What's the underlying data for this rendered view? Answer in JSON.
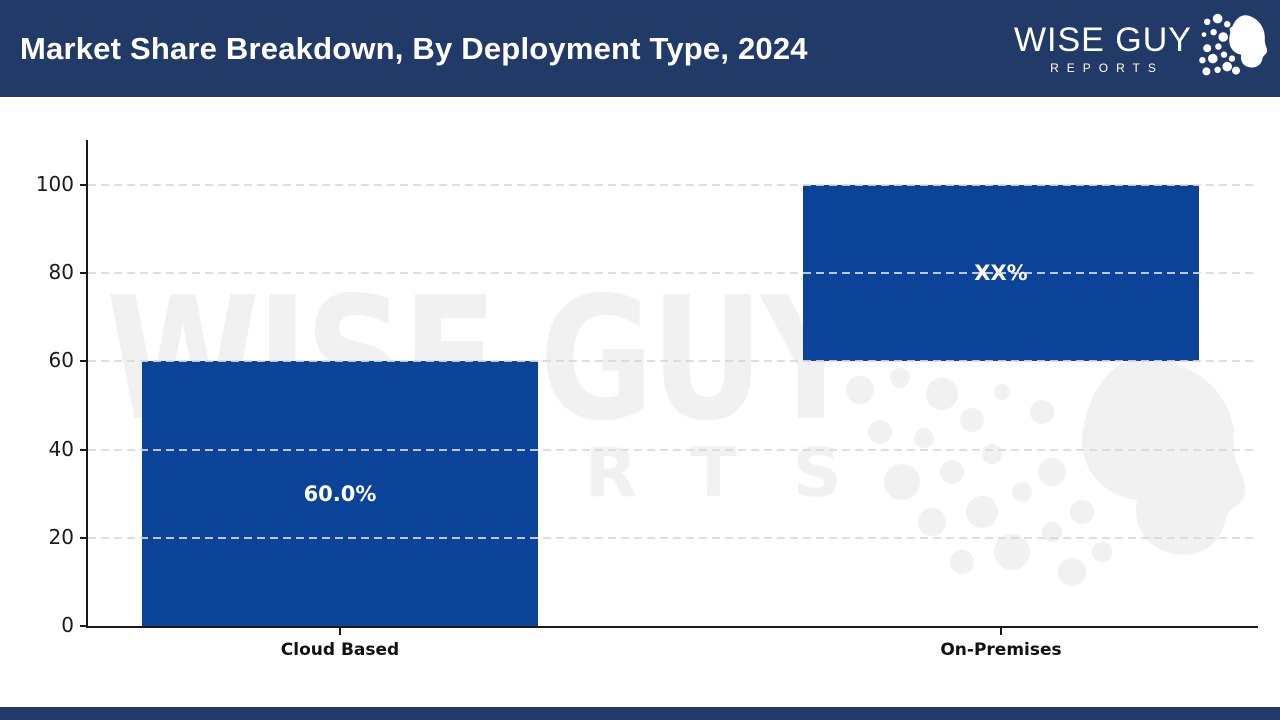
{
  "header": {
    "title": "Market Share Breakdown, By Deployment Type, 2024",
    "logo": {
      "brand_top": "WISE GUY",
      "brand_bottom": "REPORTS"
    }
  },
  "chart_data": {
    "type": "bar",
    "title": "Market Share Breakdown, By Deployment Type, 2024",
    "categories": [
      "Cloud Based",
      "On-Premises"
    ],
    "bars": [
      {
        "category": "Cloud Based",
        "start": 0,
        "end": 60,
        "label": "60.0%"
      },
      {
        "category": "On-Premises",
        "start": 60,
        "end": 100,
        "label": "XX%"
      }
    ],
    "yticks": [
      0,
      20,
      40,
      60,
      80,
      100
    ],
    "ylim": [
      0,
      110
    ],
    "xlabel": "",
    "ylabel": "",
    "grid": "dashed-horizontal",
    "legend": "none"
  },
  "watermark": {
    "big_text": "WISE GUY",
    "small_text": "RTS"
  },
  "colors": {
    "header_bg": "#223a67",
    "footer_bg": "#223a67",
    "bar_color": "#0a4397",
    "bar_label_color": "#ffffff",
    "grid_color": "#d9d9d9",
    "axis_color": "#1a1a1a",
    "tick_text_color": "#1a1a1a",
    "watermark_color": "#f1f1f1",
    "title_color": "#ffffff"
  }
}
